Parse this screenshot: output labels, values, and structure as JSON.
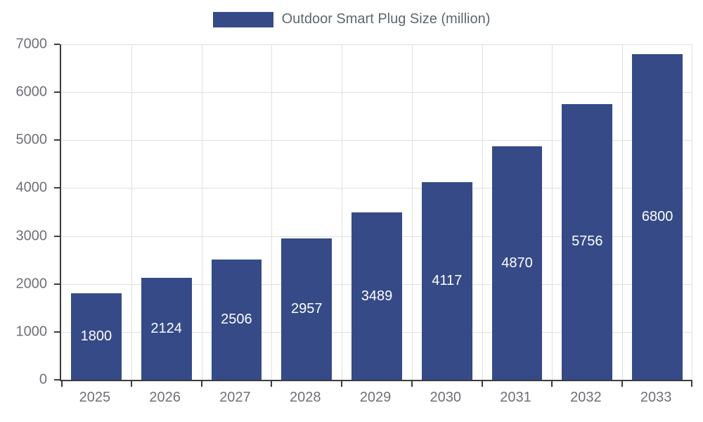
{
  "legend": {
    "label": "Outdoor Smart Plug Size (million)"
  },
  "chart_data": {
    "type": "bar",
    "title": "Outdoor Smart Plug Size (million)",
    "categories": [
      "2025",
      "2026",
      "2027",
      "2028",
      "2029",
      "2030",
      "2031",
      "2032",
      "2033"
    ],
    "values": [
      1800,
      2124,
      2506,
      2957,
      3489,
      4117,
      4870,
      5756,
      6800
    ],
    "xlabel": "",
    "ylabel": "",
    "ylim": [
      0,
      7000
    ],
    "y_ticks": [
      0,
      1000,
      2000,
      3000,
      4000,
      5000,
      6000,
      7000
    ],
    "grid": true,
    "legend_position": "top-center",
    "value_labels": "inside-center",
    "bar_color": "#354A87",
    "value_label_color": "#ffffff",
    "axis_color": "#3c3c3c",
    "gridline_color": "#e0e0e0",
    "tick_label_color": "#6E7079",
    "legend_text_color": "#5e6672"
  }
}
